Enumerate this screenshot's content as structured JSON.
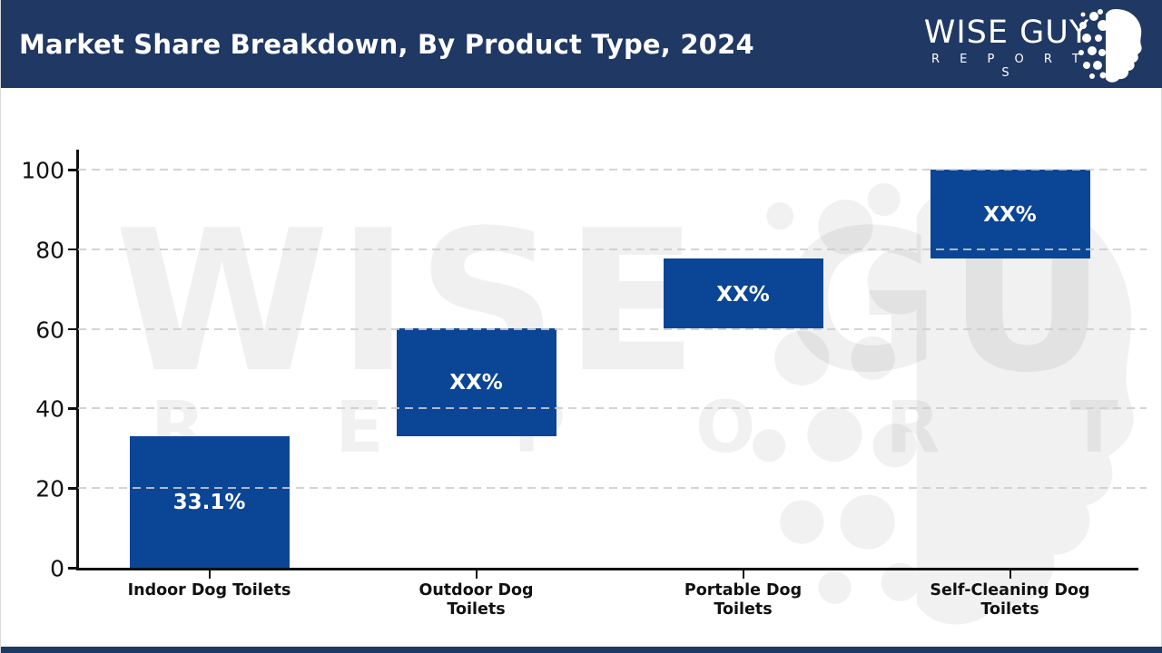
{
  "header": {
    "title": "Market Share Breakdown, By Product Type, 2024",
    "bg_color": "#1f3864",
    "logo": {
      "line1": "WISE GUY",
      "line2": "R E P O R T S"
    }
  },
  "watermark": {
    "line1": "WISE GU",
    "line2": "R E P O R T"
  },
  "footer": {
    "bg_color": "#1f3864"
  },
  "chart_data": {
    "type": "bar",
    "subtype": "waterfall",
    "title": "Market Share Breakdown, By Product Type, 2024",
    "xlabel": "",
    "ylabel": "",
    "ylim": [
      0,
      100
    ],
    "yticks": [
      0,
      20,
      40,
      60,
      80,
      100
    ],
    "grid": "dashed-horizontal",
    "legend": "none",
    "bar_color": "#0b4596",
    "categories": [
      [
        "Indoor Dog Toilets"
      ],
      [
        "Outdoor Dog",
        "Toilets"
      ],
      [
        "Portable Dog",
        "Toilets"
      ],
      [
        "Self-Cleaning Dog",
        "Toilets"
      ]
    ],
    "segments": [
      {
        "category": "Indoor Dog Toilets",
        "label": "33.1%",
        "start": 0,
        "end": 33.1
      },
      {
        "category": "Outdoor Dog Toilets",
        "label": "XX%",
        "start": 33.1,
        "end": 60.1
      },
      {
        "category": "Portable Dog Toilets",
        "label": "XX%",
        "start": 60.1,
        "end": 77.6
      },
      {
        "category": "Self-Cleaning Dog Toilets",
        "label": "XX%",
        "start": 77.6,
        "end": 100
      }
    ]
  }
}
